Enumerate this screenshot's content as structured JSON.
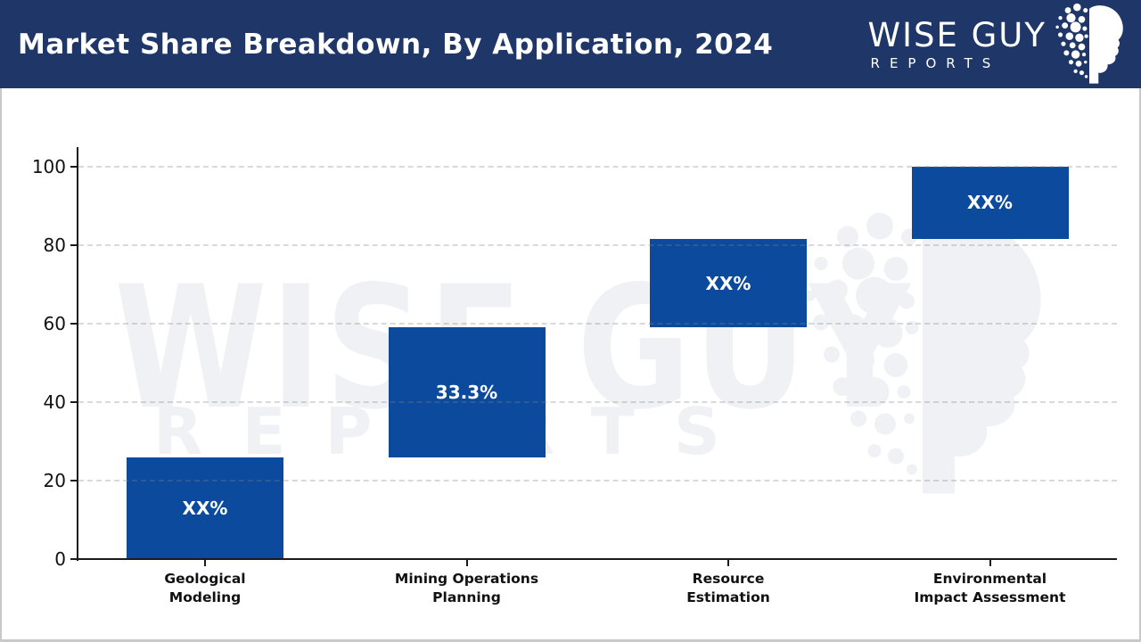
{
  "header": {
    "title": "Market Share Breakdown, By Application, 2024",
    "bg_color": "#1f3768",
    "logo": {
      "line1": "WISE GUY",
      "line2": "REPORTS"
    }
  },
  "watermark": {
    "line1": "WISE GUY",
    "line2": "REPORTS",
    "color": "#eff1f4"
  },
  "chart_data": {
    "type": "bar",
    "subtype": "waterfall",
    "title": "Market Share Breakdown, By Application, 2024",
    "categories": [
      {
        "line1": "Geological",
        "line2": "Modeling"
      },
      {
        "line1": "Mining Operations",
        "line2": "Planning"
      },
      {
        "line1": "Resource",
        "line2": "Estimation"
      },
      {
        "line1": "Environmental",
        "line2": "Impact Assessment"
      }
    ],
    "segments": [
      {
        "category": "Geological Modeling",
        "start": 0,
        "end": 25.7,
        "value": 25.7,
        "label": "XX%"
      },
      {
        "category": "Mining Operations Planning",
        "start": 25.7,
        "end": 59.0,
        "value": 33.3,
        "label": "33.3%"
      },
      {
        "category": "Resource Estimation",
        "start": 59.0,
        "end": 81.4,
        "value": 22.4,
        "label": "XX%"
      },
      {
        "category": "Environmental Impact Assessment",
        "start": 81.4,
        "end": 100,
        "value": 18.6,
        "label": "XX%"
      }
    ],
    "yticks": [
      0,
      20,
      40,
      60,
      80,
      100
    ],
    "ylim": [
      0,
      105
    ],
    "xlabel": "",
    "ylabel": "",
    "bar_color": "#0c4a9e",
    "grid": "horizontal-dashed",
    "legend": null
  }
}
